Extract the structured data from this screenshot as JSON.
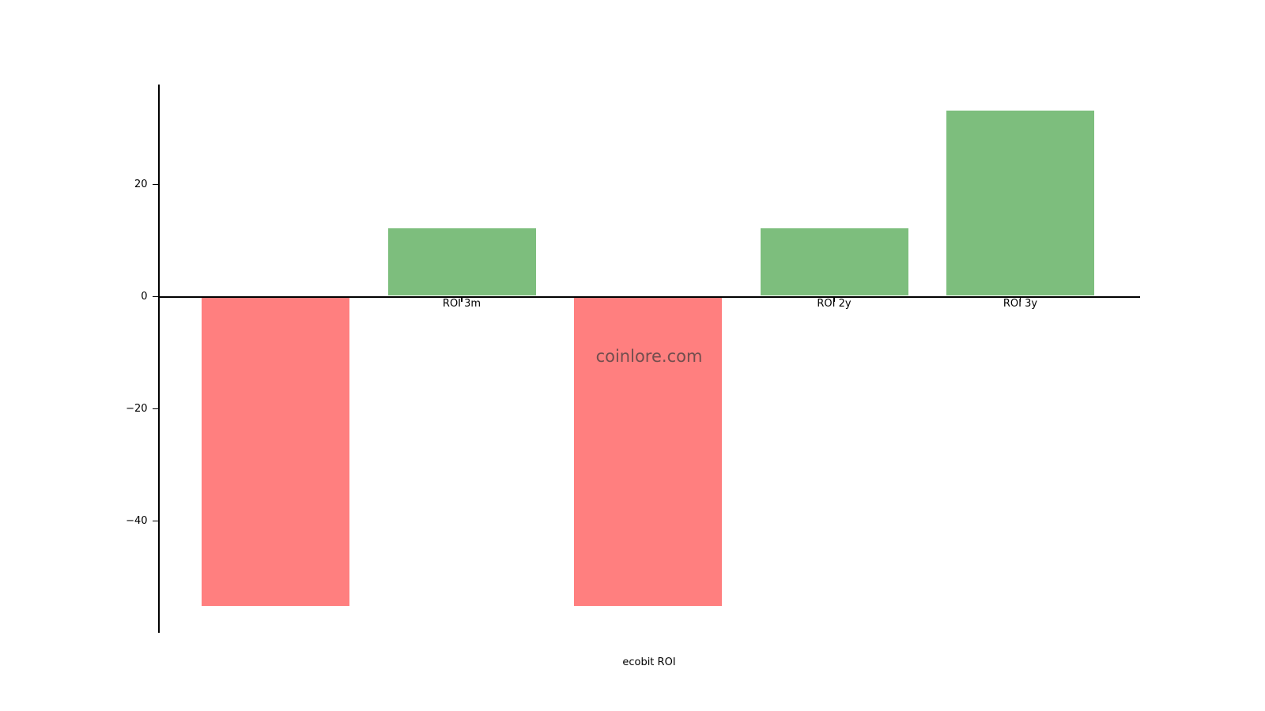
{
  "chart_data": {
    "type": "bar",
    "title": "",
    "xlabel": "ecobit ROI",
    "watermark": "coinlore.com",
    "categories": [
      "",
      "ROI 3m",
      "",
      "ROI 2y",
      "ROI 3y"
    ],
    "values": [
      -55,
      12,
      -55,
      12,
      33
    ],
    "bar_colors": [
      "#ff7f7f",
      "#7dbe7d",
      "#ff7f7f",
      "#7dbe7d",
      "#7dbe7d"
    ],
    "yticks": [
      {
        "label": "20",
        "value": 20
      },
      {
        "label": "0",
        "value": 0
      },
      {
        "label": "−20",
        "value": -20
      },
      {
        "label": "−40",
        "value": -40
      }
    ],
    "ylim": [
      -59.5,
      37.8
    ],
    "grid": false,
    "legend": null,
    "colors": {
      "positive": "#7dbe7d",
      "negative": "#ff7f7f",
      "axis": "#000000",
      "watermark": "#3c3c3c"
    }
  }
}
